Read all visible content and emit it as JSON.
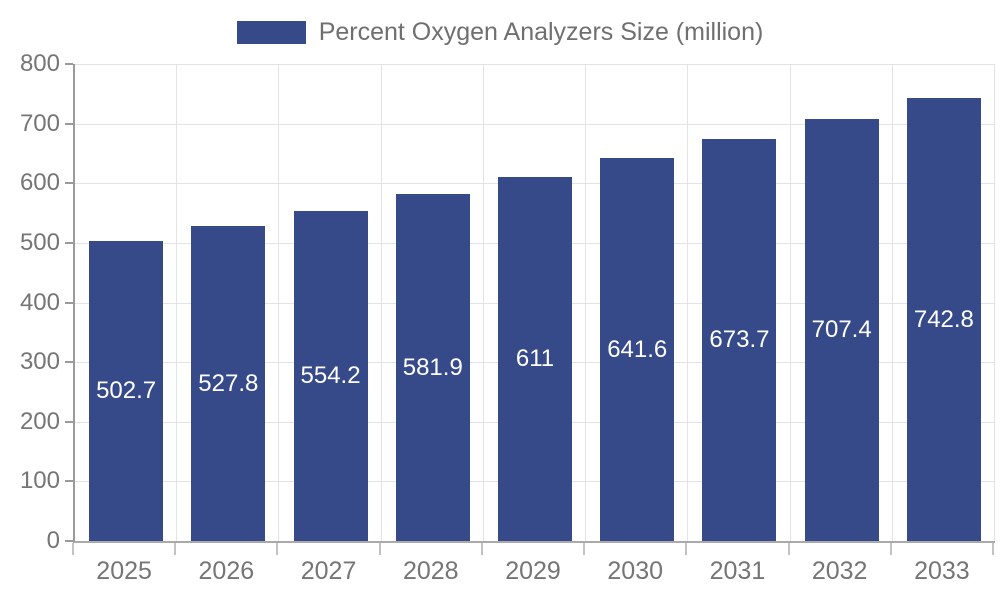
{
  "legend": {
    "label": "Percent Oxygen Analyzers Size (million)"
  },
  "colors": {
    "bar": "#364a8a",
    "grid": "#e3e3e3",
    "y_axis_line": "#9a9a9a",
    "x_axis_line": "#aaaaaa",
    "tick": "#c2c2c2",
    "axis_text": "#757575",
    "value_text": "#ffffff"
  },
  "chart_data": {
    "type": "bar",
    "title": "Percent Oxygen Analyzers Size (million)",
    "categories": [
      "2025",
      "2026",
      "2027",
      "2028",
      "2029",
      "2030",
      "2031",
      "2032",
      "2033"
    ],
    "values": [
      502.7,
      527.8,
      554.2,
      581.9,
      611,
      641.6,
      673.7,
      707.4,
      742.8
    ],
    "value_labels": [
      "502.7",
      "527.8",
      "554.2",
      "581.9",
      "611",
      "641.6",
      "673.7",
      "707.4",
      "742.8"
    ],
    "xlabel": "",
    "ylabel": "",
    "ylim": [
      0,
      800
    ],
    "yticks": [
      0,
      100,
      200,
      300,
      400,
      500,
      600,
      700,
      800
    ],
    "grid": true,
    "legend_position": "top",
    "value_label_position": "center-inside"
  }
}
